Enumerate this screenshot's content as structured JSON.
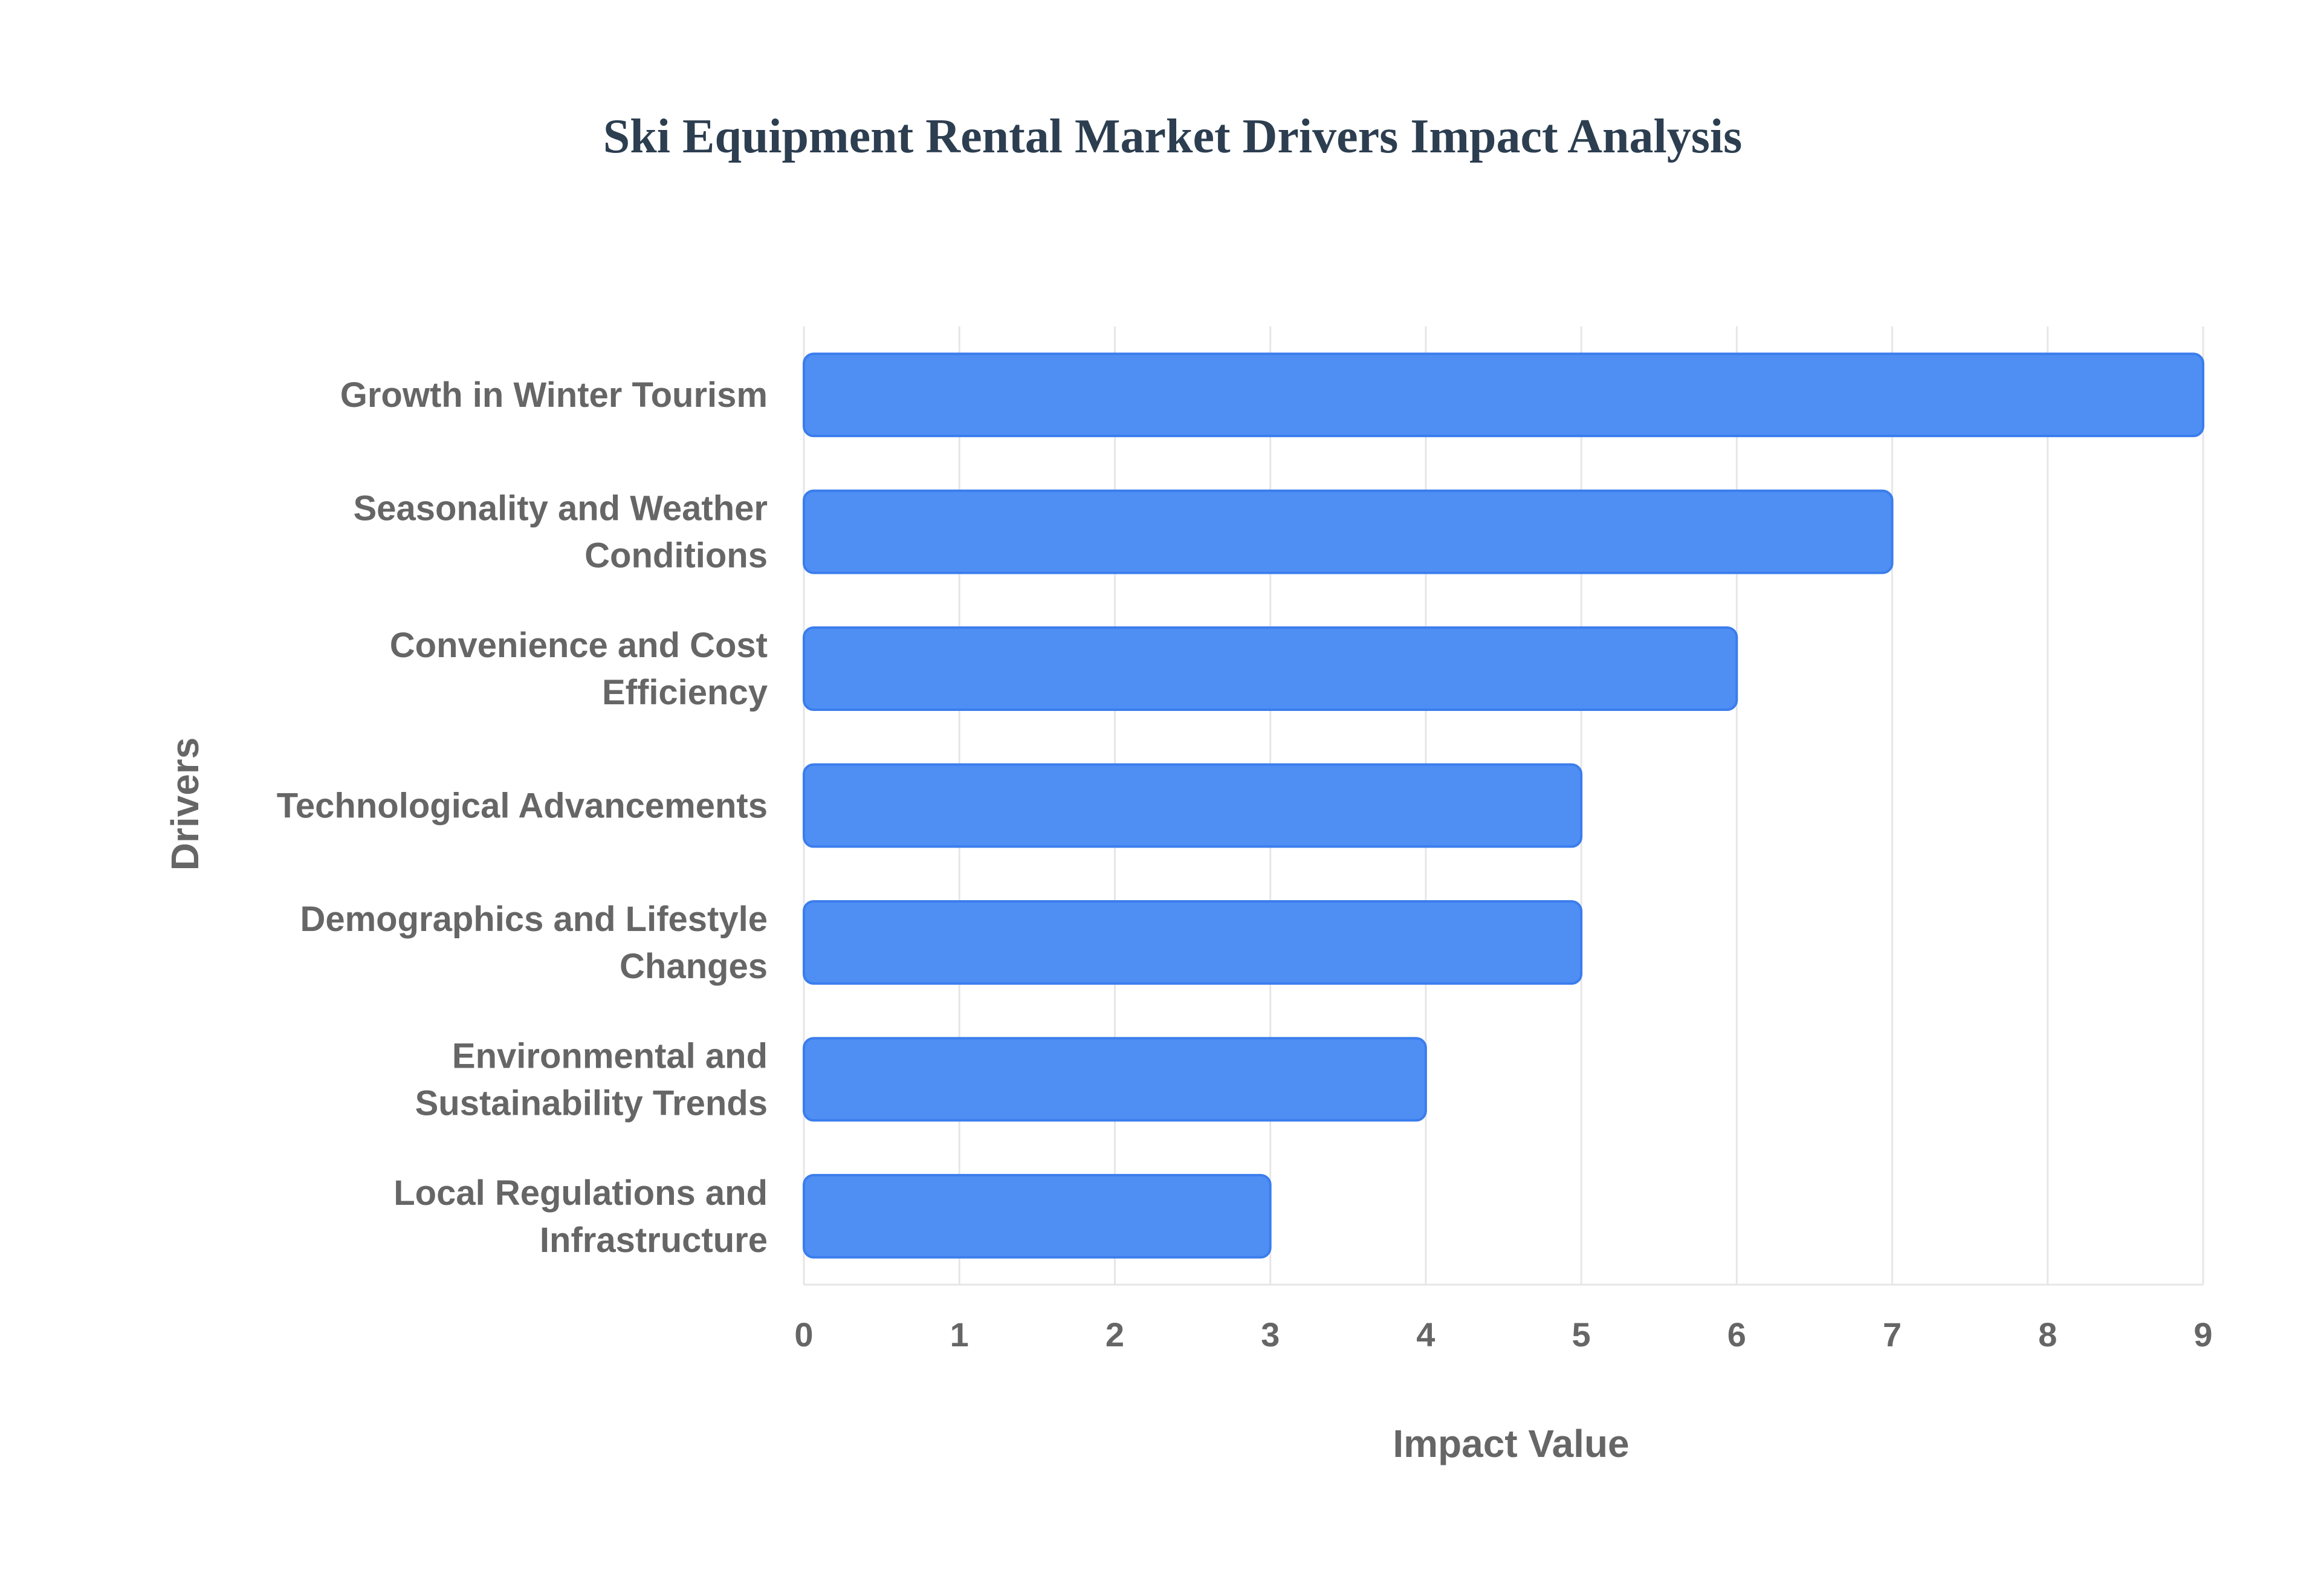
{
  "chart_data": {
    "type": "bar",
    "orientation": "horizontal",
    "title": "Ski Equipment Rental Market Drivers Impact Analysis",
    "xlabel": "Impact Value",
    "ylabel": "Drivers",
    "xlim": [
      0,
      9
    ],
    "x_ticks": [
      "0",
      "1",
      "2",
      "3",
      "4",
      "5",
      "6",
      "7",
      "8",
      "9"
    ],
    "grid": true,
    "categories": [
      [
        "Growth in Winter Tourism"
      ],
      [
        "Seasonality and Weather",
        "Conditions"
      ],
      [
        "Convenience and Cost",
        "Efficiency"
      ],
      [
        "Technological Advancements"
      ],
      [
        "Demographics and Lifestyle",
        "Changes"
      ],
      [
        "Environmental and",
        "Sustainability Trends"
      ],
      [
        "Local Regulations and",
        "Infrastructure"
      ]
    ],
    "values": [
      9,
      7,
      6,
      5,
      5,
      4,
      3
    ],
    "colors": {
      "bar_fill": "#4f8ff4",
      "bar_stroke": "#3b7ded",
      "title": "#2c3e50",
      "text": "#666666",
      "grid": "#e6e6e6"
    }
  }
}
